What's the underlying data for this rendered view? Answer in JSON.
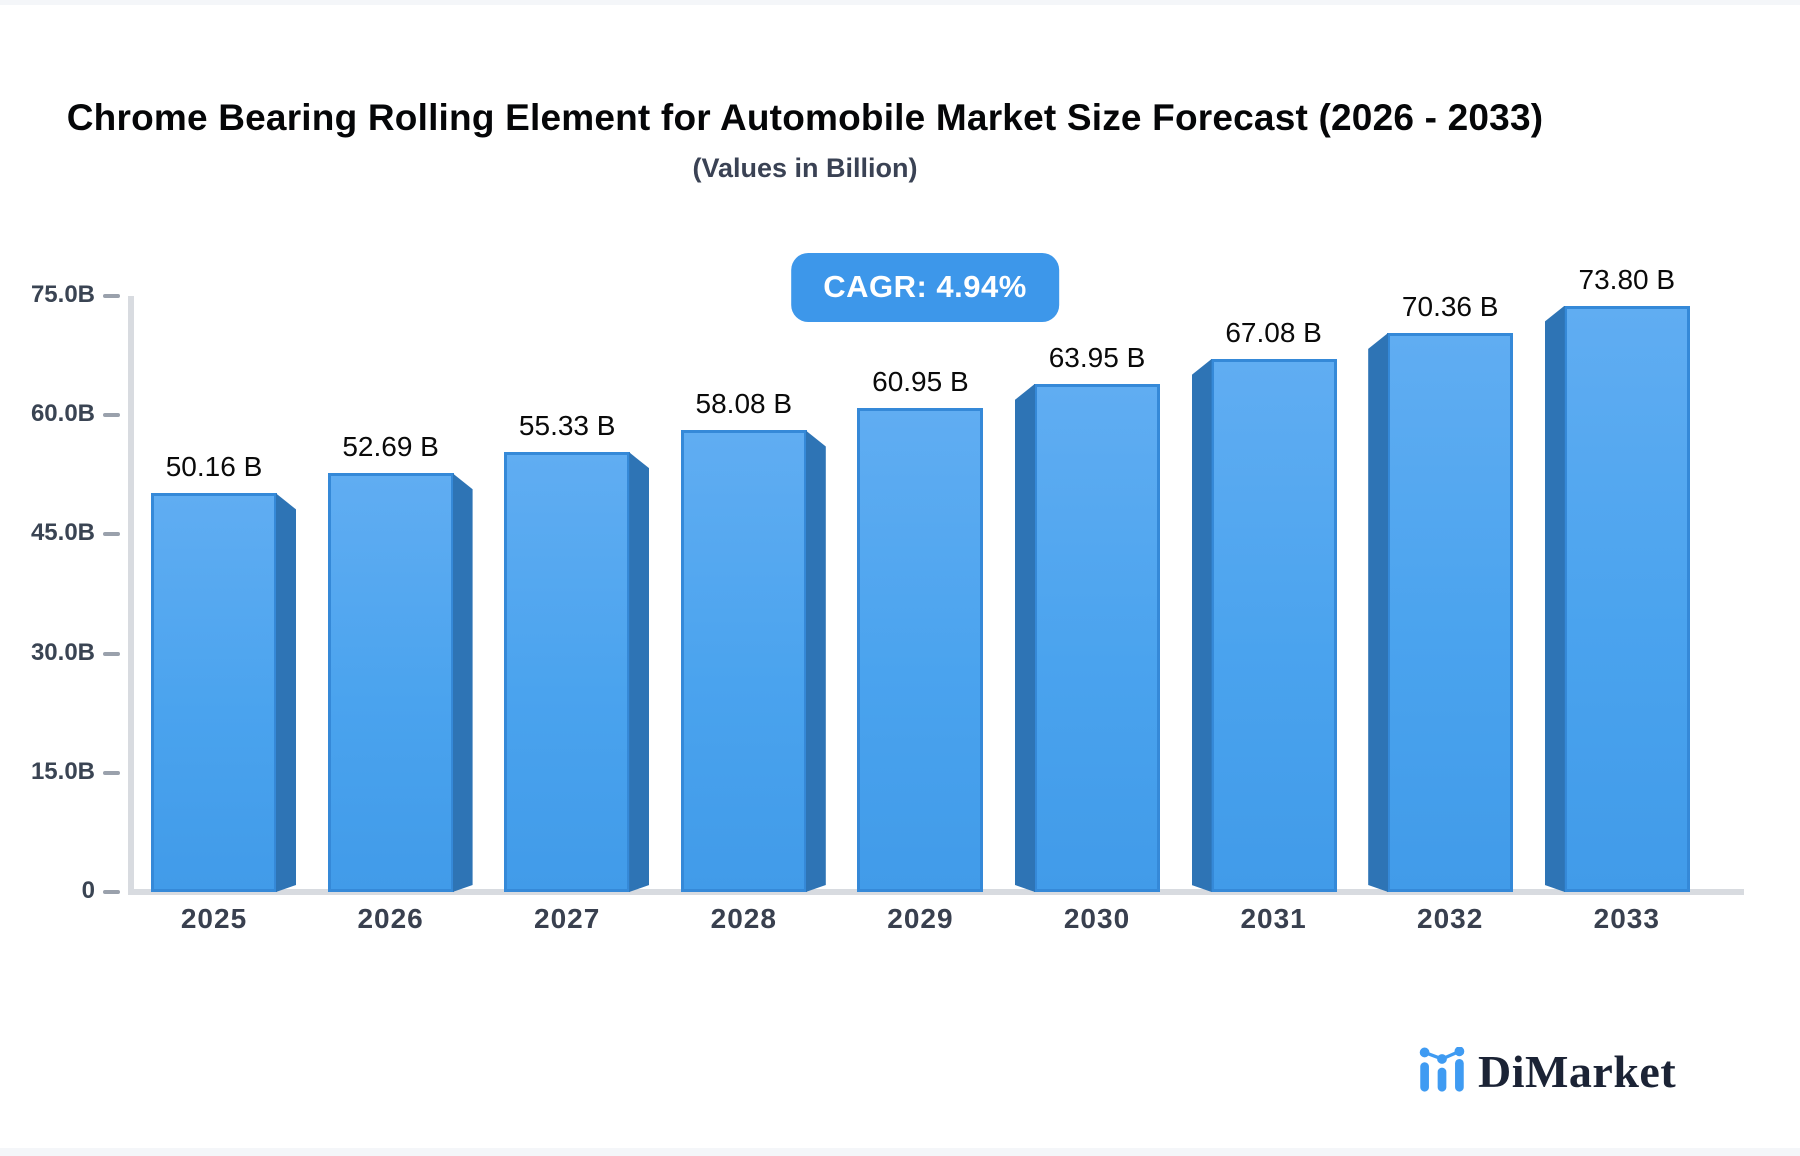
{
  "page": {
    "background": "#F4F6F9",
    "card_background": "#FFFFFF"
  },
  "header": {
    "title": "Chrome Bearing Rolling Element for Automobile Market Size Forecast (2026 - 2033)",
    "subtitle": "(Values in Billion)"
  },
  "badge": {
    "label": "CAGR: 4.94%",
    "background": "#3D97EA",
    "text_color": "#FFFFFF"
  },
  "chart_data": {
    "type": "bar",
    "title": "Chrome Bearing Rolling Element for Automobile Market Size Forecast (2026 - 2033)",
    "subtitle": "(Values in Billion)",
    "categories": [
      "2025",
      "2026",
      "2027",
      "2028",
      "2029",
      "2030",
      "2031",
      "2032",
      "2033"
    ],
    "values": [
      50.16,
      52.69,
      55.33,
      58.08,
      60.95,
      63.95,
      67.08,
      70.36,
      73.8
    ],
    "value_labels": [
      "50.16 B",
      "52.69 B",
      "55.33 B",
      "58.08 B",
      "60.95 B",
      "63.95 B",
      "67.08 B",
      "70.36 B",
      "73.80 B"
    ],
    "xlabel": "",
    "ylabel": "",
    "ylim": [
      0,
      75
    ],
    "ytick_values": [
      0,
      15,
      30,
      45,
      60,
      75
    ],
    "ytick_labels": [
      "0",
      "15.0B",
      "30.0B",
      "45.0B",
      "60.0B",
      "75.0B"
    ],
    "grid": false,
    "legend": null,
    "style": "3d-bars-center-perspective",
    "colors": {
      "bar_face_top": "#60ADF2",
      "bar_face_bottom": "#419BE9",
      "bar_face_border": "#3589D8",
      "bar_side": "#2E74B5",
      "axis": "#D8DBE0",
      "tick": "#9AA1AC",
      "tick_text": "#3A4453",
      "category_text": "#39404F",
      "value_text": "#0A0A0A"
    }
  },
  "logo": {
    "text": "DiMarket",
    "icon": "dimarket-bars-icon",
    "icon_color": "#3F9BF2",
    "text_color": "#1B2335"
  }
}
